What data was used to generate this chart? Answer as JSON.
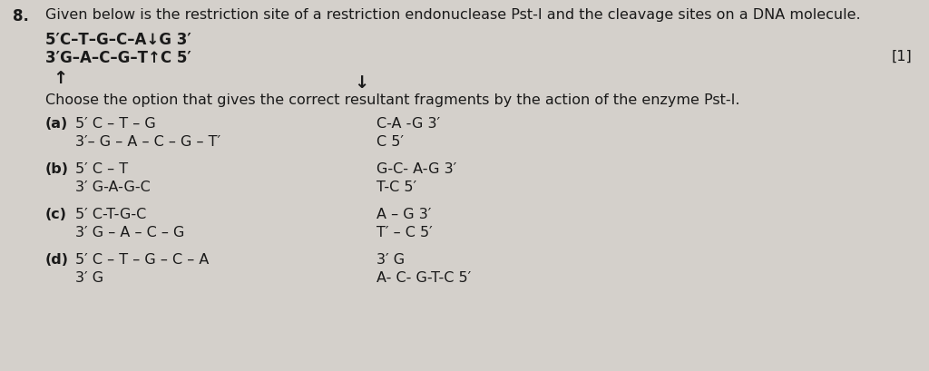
{
  "background_color": "#d4d0cb",
  "text_color": "#1a1a1a",
  "q_num": "8.",
  "q_intro": "Given below is the restriction site of a restriction endonuclease Pst-I and the cleavage sites on a DNA molecule.",
  "strand1": "5′C–T–G–C–A↓G 3′",
  "strand2": "3′G–A–C–G–T↑C 5′",
  "mark": "[1]",
  "up_arrow": "↑",
  "down_arrow": "↓",
  "choose_text": "Choose the option that gives the correct resultant fragments by the action of the enzyme Pst-I.",
  "options": [
    {
      "label": "(a)",
      "ll1": "5′ C – T – G",
      "ll2": "3′– G – A – C – G – T′",
      "rl1": "C-A -G 3′",
      "rl2": "C 5′"
    },
    {
      "label": "(b)",
      "ll1": "5′ C – T",
      "ll2": "3′ G-A-G-C",
      "rl1": "G-C- A-G 3′",
      "rl2": "T-C 5′"
    },
    {
      "label": "(c)",
      "ll1": "5′ C-T-G-C",
      "ll2": "3′ G – A – C – G",
      "rl1": "A – G 3′",
      "rl2": "T′ – C 5′"
    },
    {
      "label": "(d)",
      "ll1": "5′ C-T- G-C- A",
      "ll2": "3′ G",
      "rl1": "3′ G",
      "rl2": "A- C- G-T-C 5′"
    }
  ],
  "font_main": 11.5,
  "font_bold": 12,
  "font_strand": 12
}
